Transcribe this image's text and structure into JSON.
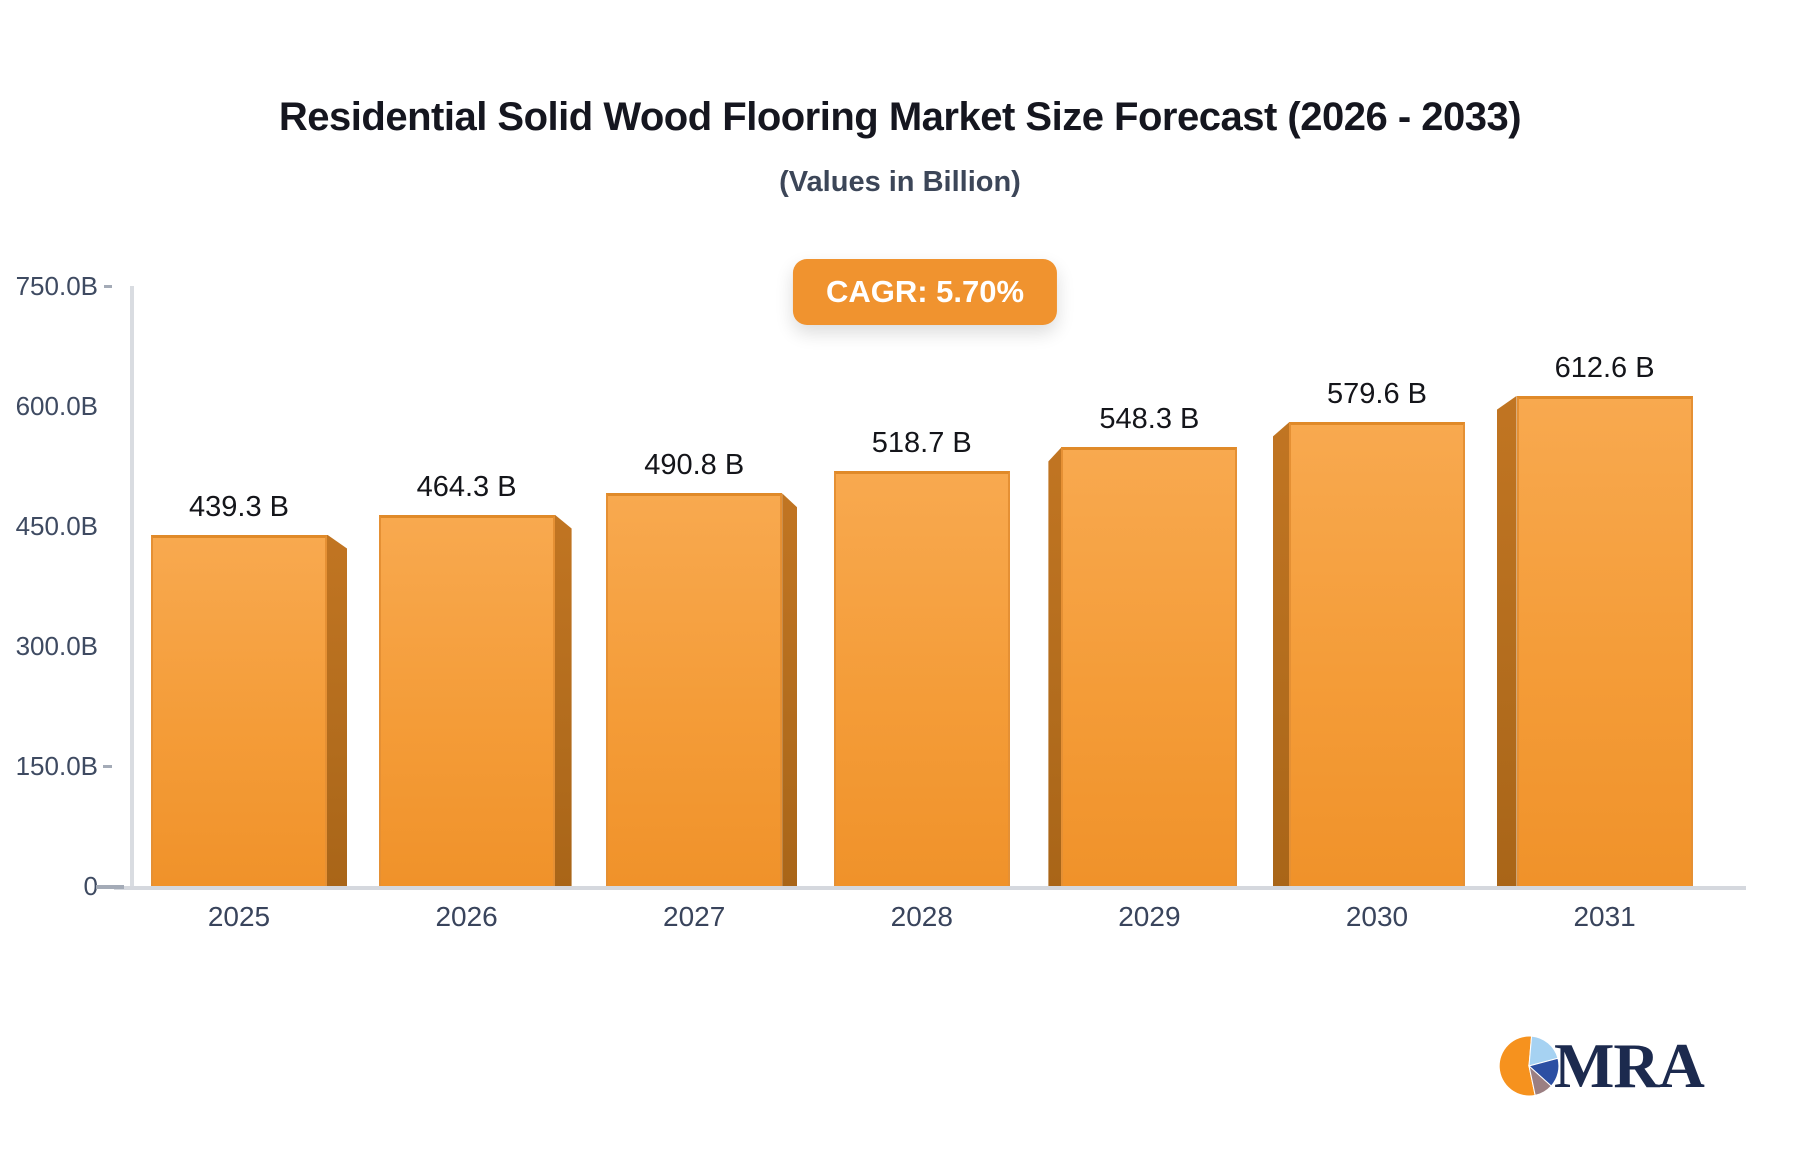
{
  "header": {
    "title": "Residential Solid Wood Flooring Market Size Forecast (2026 - 2033)",
    "subtitle": "(Values in Billion)"
  },
  "badge": {
    "label": "CAGR: 5.70%",
    "bg_color": "#f0932f",
    "text_color": "#ffffff"
  },
  "logo": {
    "text": "MRA",
    "pie_icon_colors": {
      "orange": "#f6921e",
      "light_blue": "#a6d2f2",
      "blue": "#2c4fa3",
      "mauve": "#9b7f82"
    }
  },
  "chart_data": {
    "type": "bar",
    "title": "Residential Solid Wood Flooring Market Size Forecast (2026 - 2033)",
    "subtitle": "(Values in Billion)",
    "categories": [
      "2025",
      "2026",
      "2027",
      "2028",
      "2029",
      "2030",
      "2031"
    ],
    "values": [
      439.3,
      464.3,
      490.8,
      518.7,
      548.3,
      579.6,
      612.6
    ],
    "value_labels": [
      "439.3 B",
      "464.3 B",
      "490.8 B",
      "518.7 B",
      "548.3 B",
      "579.6 B",
      "612.6 B"
    ],
    "xlabel": "",
    "ylabel": "",
    "ylim": [
      0,
      750
    ],
    "ytick_values": [
      750,
      600,
      450,
      300,
      150,
      0
    ],
    "ytick_labels": [
      "750.0B",
      "600.0B",
      "450.0B",
      "300.0B",
      "150.0B",
      "0"
    ],
    "grid": false,
    "legend": "none",
    "style_3d": true,
    "colors": {
      "bar_top": "#f8a94f",
      "bar_bottom": "#f0922a",
      "bar_side": "#b26c1d",
      "bar_edge": "#e08a29",
      "axis": "#d9dce1",
      "tick_text": "#3e4a61",
      "value_text": "#14151a"
    }
  }
}
